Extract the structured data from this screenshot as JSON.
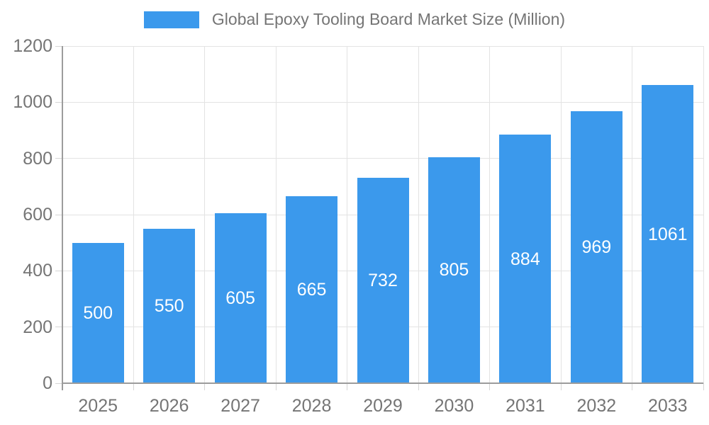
{
  "legend": {
    "label": "Global Epoxy Tooling Board Market Size (Million)"
  },
  "chart_data": {
    "type": "bar",
    "title": "Global Epoxy Tooling Board Market Size (Million)",
    "categories": [
      "2025",
      "2026",
      "2027",
      "2028",
      "2029",
      "2030",
      "2031",
      "2032",
      "2033"
    ],
    "values": [
      500,
      550,
      605,
      665,
      732,
      805,
      884,
      969,
      1061
    ],
    "xlabel": "",
    "ylabel": "",
    "ylim": [
      0,
      1200
    ],
    "yticks": [
      0,
      200,
      400,
      600,
      800,
      1000,
      1200
    ],
    "grid": "on",
    "legend_position": "top",
    "bar_color": "#3B99EC",
    "value_label_color": "#ffffff",
    "grid_color": "#e3e3e3",
    "tick_color": "#d6d6d6",
    "axis_color": "#9c9c9c",
    "text_color": "#757575"
  }
}
